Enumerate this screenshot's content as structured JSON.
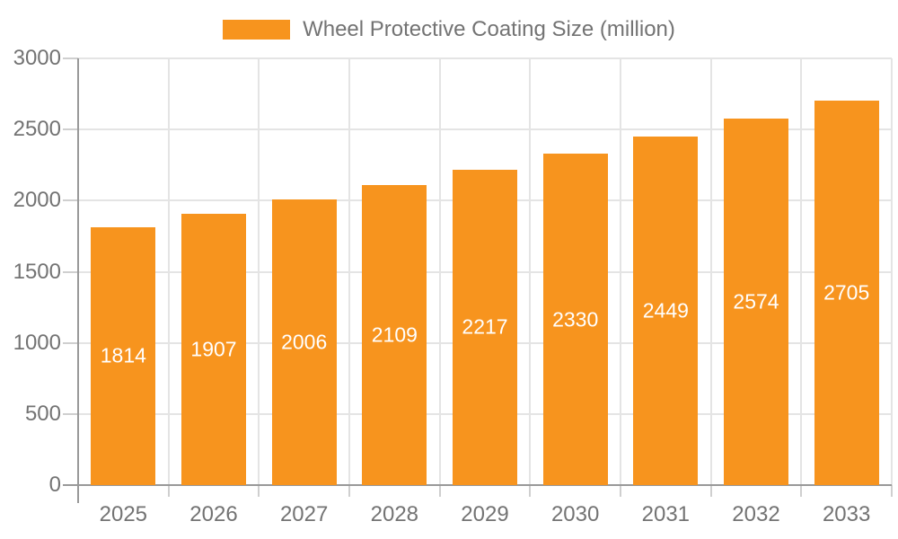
{
  "chart_data": {
    "type": "bar",
    "title": "",
    "xlabel": "",
    "ylabel": "",
    "categories": [
      "2025",
      "2026",
      "2027",
      "2028",
      "2029",
      "2030",
      "2031",
      "2032",
      "2033"
    ],
    "series": [
      {
        "name": "Wheel Protective Coating Size (million)",
        "values": [
          1814,
          1907,
          2006,
          2109,
          2217,
          2330,
          2449,
          2574,
          2705
        ]
      }
    ],
    "ylim": [
      0,
      3000
    ],
    "y_ticks": [
      0,
      500,
      1000,
      1500,
      2000,
      2500,
      3000
    ],
    "grid": true,
    "legend_position": "top",
    "value_labels": "inside-center",
    "colors": {
      "bar": "#F7941E",
      "value_label": "#FFFFFF",
      "axis_text": "#737373",
      "axis_line": "#999999",
      "gridline": "#E4E4E4",
      "tick": "#CFCFCF",
      "background": "#FFFFFF"
    }
  }
}
